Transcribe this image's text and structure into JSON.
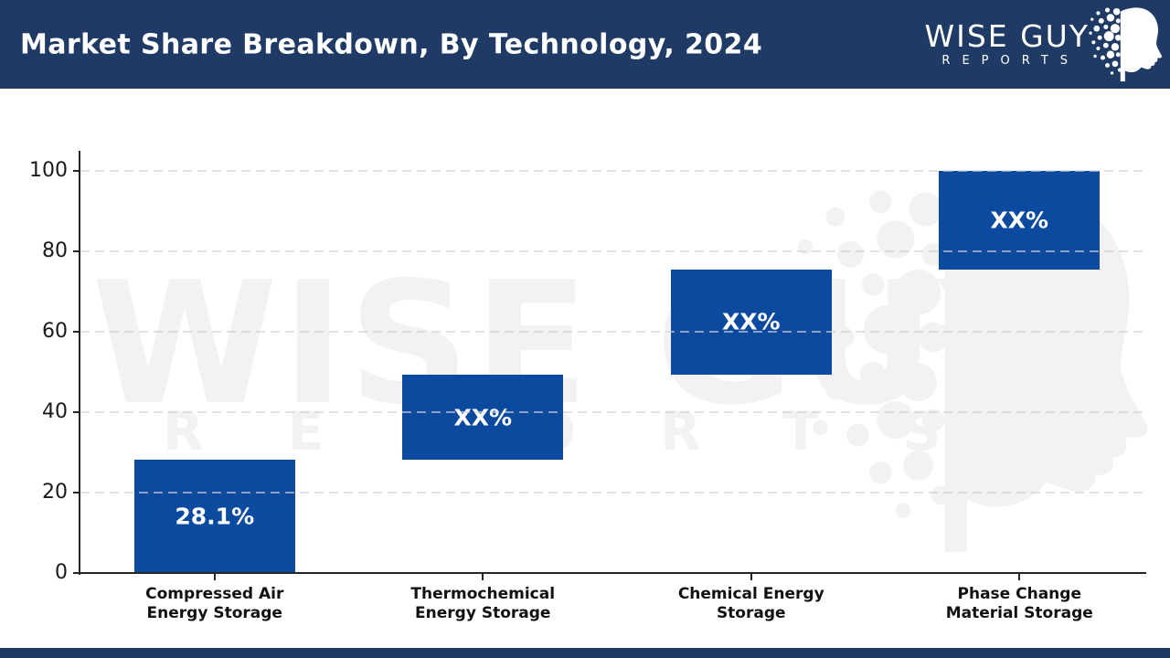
{
  "header": {
    "title": "Market Share Breakdown, By Technology, 2024",
    "logo": {
      "line1": "WISE GUY",
      "line2": "REPORTS"
    }
  },
  "watermark": {
    "line1": "WISE GUY",
    "line2": "REPORTS"
  },
  "chart_data": {
    "type": "bar",
    "subtype": "waterfall-stacked-percent",
    "title": "Market Share Breakdown, By Technology, 2024",
    "xlabel": "",
    "ylabel": "",
    "ylim": [
      0,
      105
    ],
    "yticks": [
      0,
      20,
      40,
      60,
      80,
      100
    ],
    "grid": "dashed-horizontal",
    "legend": "none",
    "categories": [
      [
        "Compressed Air",
        "Energy Storage"
      ],
      [
        "Thermochemical",
        "Energy Storage"
      ],
      [
        "Chemical Energy",
        "Storage"
      ],
      [
        "Phase Change",
        "Material Storage"
      ]
    ],
    "segments": [
      {
        "category": "Compressed Air Energy Storage",
        "label": "28.1%",
        "start": 0,
        "end": 28.1
      },
      {
        "category": "Thermochemical Energy Storage",
        "label": "XX%",
        "start": 28.1,
        "end": 49.4
      },
      {
        "category": "Chemical Energy Storage",
        "label": "XX%",
        "start": 49.4,
        "end": 75.5
      },
      {
        "category": "Phase Change Material Storage",
        "label": "XX%",
        "start": 75.5,
        "end": 100
      }
    ]
  },
  "colors": {
    "header_bg": "#1f3a64",
    "footer_bg": "#1f3a64",
    "bar": "#0b4a9f",
    "axis": "#262626",
    "grid": "#d9d9d9",
    "watermark": "#f2f2f4",
    "title_text": "#ffffff",
    "value_label_text": "#ffffff",
    "tick_label_text": "#1a1a1a"
  }
}
